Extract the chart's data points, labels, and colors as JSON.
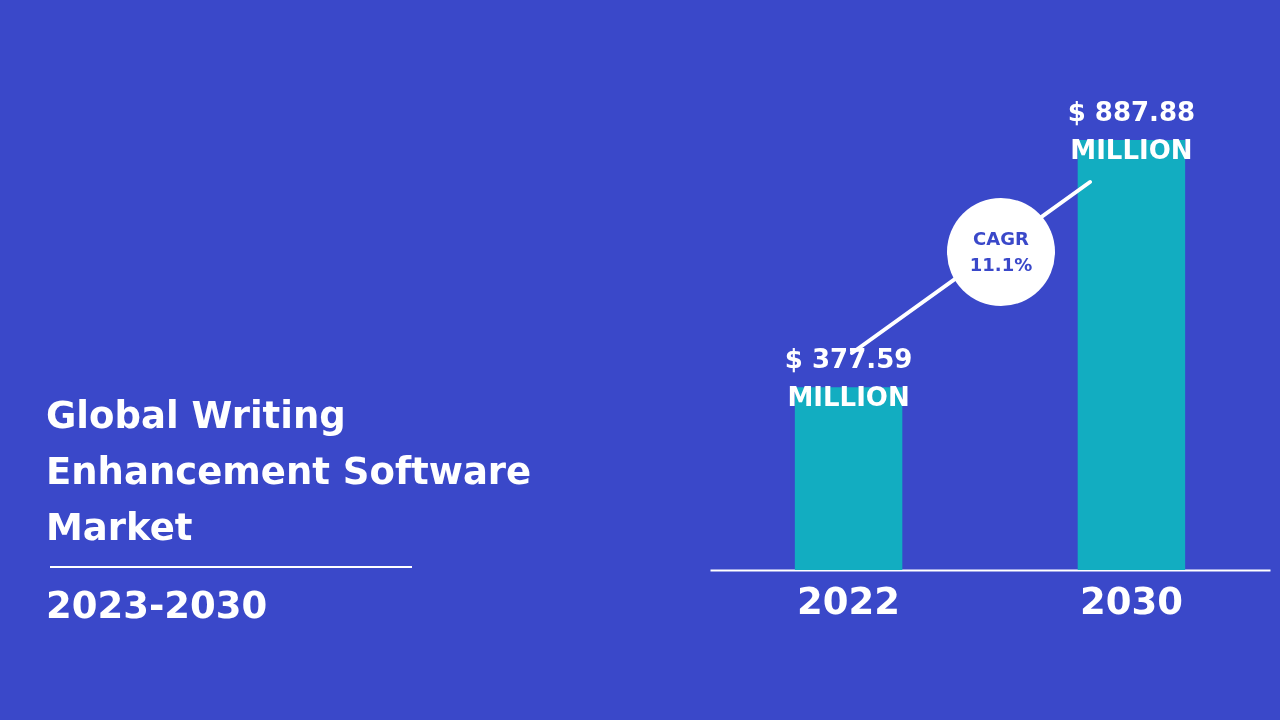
{
  "chart_data": {
    "type": "bar",
    "title": "Global Writing Enhancement Software Market",
    "subtitle": "2023-2030",
    "categories": [
      "2022",
      "2030"
    ],
    "values": [
      377.59,
      887.88
    ],
    "color": "#12adc1",
    "value_labels": [
      "$ 377.59\nMILLION",
      "$ 887.88\nMILLION"
    ],
    "annotations": [
      "CAGR\n11.1%"
    ]
  }
}
